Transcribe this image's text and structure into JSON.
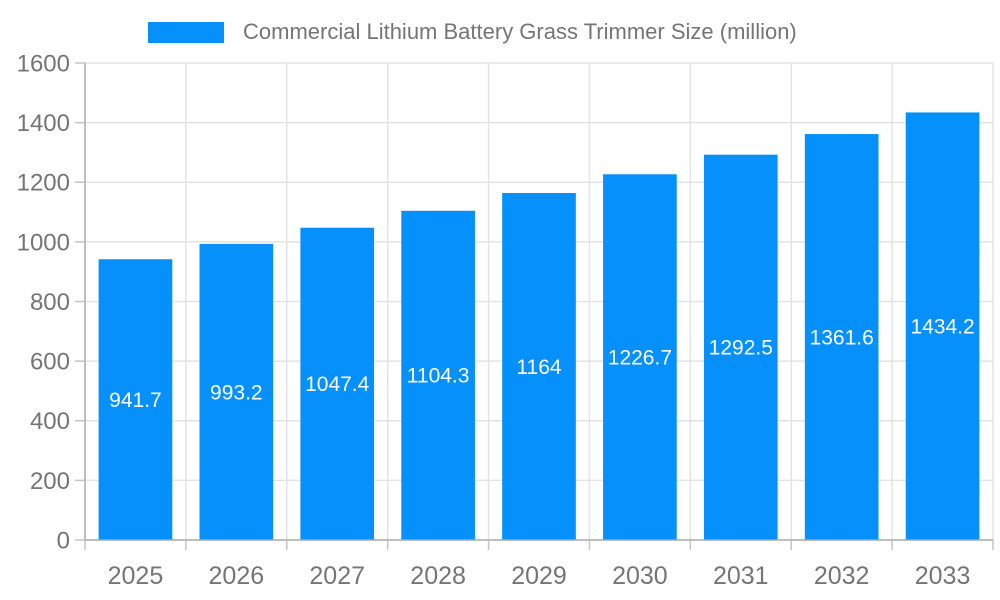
{
  "chart_data": {
    "type": "bar",
    "title": "Commercial Lithium Battery Grass Trimmer Size (million)",
    "categories": [
      "2025",
      "2026",
      "2027",
      "2028",
      "2029",
      "2030",
      "2031",
      "2032",
      "2033"
    ],
    "series": [
      {
        "name": "Commercial Lithium Battery Grass Trimmer Size (million)",
        "values": [
          941.7,
          993.2,
          1047.4,
          1104.3,
          1164,
          1226.7,
          1292.5,
          1361.6,
          1434.2
        ]
      }
    ],
    "value_labels": [
      "941.7",
      "993.2",
      "1047.4",
      "1104.3",
      "1164",
      "1226.7",
      "1292.5",
      "1361.6",
      "1434.2"
    ],
    "xlabel": "",
    "ylabel": "",
    "ylim": [
      0,
      1600
    ],
    "y_ticks": [
      0,
      200,
      400,
      600,
      800,
      1000,
      1200,
      1400,
      1600
    ],
    "grid": true,
    "legend_position": "top",
    "colors": {
      "bar": "#0590FB",
      "axis_text": "#757575",
      "value_label": "#FFFFFF",
      "grid_line": "#E3E3E3",
      "axis_line": "#A8A8A8",
      "tick_line": "#C4C4C4",
      "background": "#FFFFFF"
    }
  }
}
